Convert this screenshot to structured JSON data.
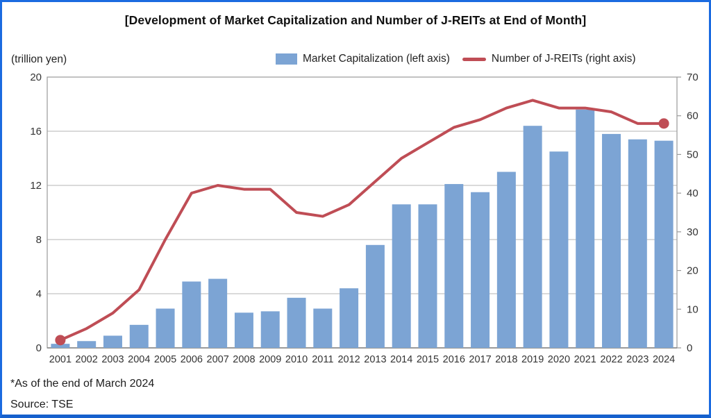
{
  "title": "[Development of Market Capitalization and Number of J-REITs at End of Month]",
  "left_axis_unit_label": "(trillion yen)",
  "legend": {
    "bar_label": "Market Capitalization (left axis)",
    "line_label": "Number of J-REITs (right axis)"
  },
  "footnotes": {
    "asterisk_note": "*As of the end of March 2024",
    "source": "Source: TSE"
  },
  "colors": {
    "bar": "#7CA4D4",
    "line": "#BF4D55",
    "grid": "#c4c4c4",
    "plot_border": "#9a9a9a",
    "baseline": "#7f7f7f",
    "axis_text": "#333333",
    "frame_border": "#1b6be0"
  },
  "chart_data": {
    "type": "bar",
    "subtype": "combo-bar-line-dual-axis",
    "title": "[Development of Market Capitalization and Number of J-REITs at End of Month]",
    "categories": [
      "2001",
      "2002",
      "2003",
      "2004",
      "2005",
      "2006",
      "2007",
      "2008",
      "2009",
      "2010",
      "2011",
      "2012",
      "2013",
      "2014",
      "2015",
      "2016",
      "2017",
      "2018",
      "2019",
      "2020",
      "2021",
      "2022",
      "2023",
      "2024"
    ],
    "series": [
      {
        "name": "Market Capitalization (left axis)",
        "type": "bar",
        "axis": "left",
        "unit": "trillion yen",
        "values": [
          0.3,
          0.5,
          0.9,
          1.7,
          2.9,
          4.9,
          5.1,
          2.6,
          2.7,
          3.7,
          2.9,
          4.4,
          7.6,
          10.6,
          10.6,
          12.1,
          11.5,
          13.0,
          16.4,
          14.5,
          17.6,
          15.8,
          15.4,
          15.3
        ]
      },
      {
        "name": "Number of J-REITs (right axis)",
        "type": "line",
        "axis": "right",
        "unit": "count",
        "values": [
          2,
          5,
          9,
          15,
          28,
          40,
          42,
          41,
          41,
          35,
          34,
          37,
          43,
          49,
          53,
          57,
          59,
          62,
          64,
          62,
          62,
          61,
          58,
          58
        ],
        "markers": "first-and-last-point-only"
      }
    ],
    "left_axis": {
      "label": "(trillion yen)",
      "min": 0,
      "max": 20,
      "ticks": [
        0,
        4,
        8,
        12,
        16,
        20
      ]
    },
    "right_axis": {
      "label": "",
      "min": 0,
      "max": 70,
      "ticks": [
        0,
        10,
        20,
        30,
        40,
        50,
        60,
        70
      ]
    },
    "grid": true,
    "legend_position": "top"
  }
}
